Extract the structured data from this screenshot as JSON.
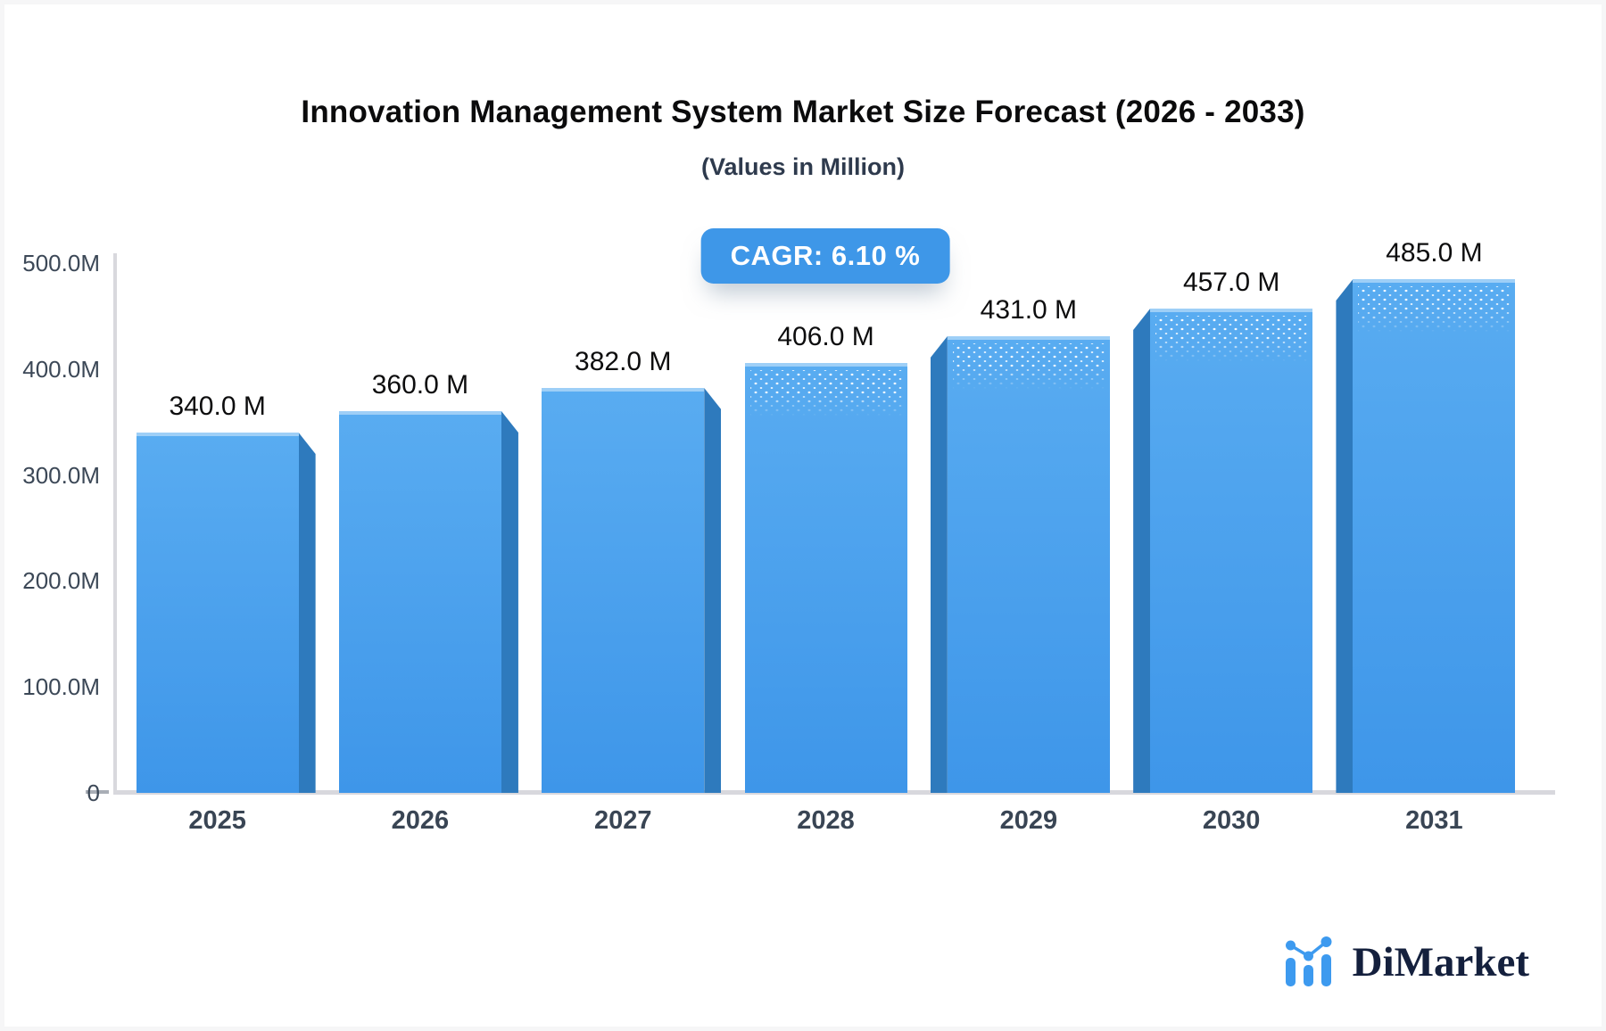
{
  "chart_data": {
    "type": "bar",
    "title": "Innovation Management System Market Size Forecast (2026 - 2033)",
    "subtitle": "(Values in Million)",
    "annotation": "CAGR: 6.10 %",
    "unit": "Million",
    "categories": [
      "2025",
      "2026",
      "2027",
      "2028",
      "2029",
      "2030",
      "2031"
    ],
    "values": [
      340,
      360,
      382,
      406,
      431,
      457,
      485
    ],
    "value_labels": [
      "340.0 M",
      "360.0 M",
      "382.0 M",
      "406.0 M",
      "431.0 M",
      "457.0 M",
      "485.0 M"
    ],
    "xlabel": "",
    "ylabel": "",
    "ylim": [
      0,
      500
    ],
    "yticks": [
      {
        "value": 500,
        "label": "500.0M"
      },
      {
        "value": 400,
        "label": "400.0M"
      },
      {
        "value": 300,
        "label": "300.0M"
      },
      {
        "value": 200,
        "label": "200.0M"
      },
      {
        "value": 100,
        "label": "100.0M"
      },
      {
        "value": 0,
        "label": "0"
      }
    ],
    "grid": false,
    "legend": "none",
    "colors": {
      "bar_top": "#59acf1",
      "bar_bottom": "#3e96e9",
      "bar_side_face": "#2e7abd",
      "badge_background": "#3e97e8",
      "badge_text": "#ffffff",
      "axis_line": "#d8d8dd",
      "zero_tick": "#a9aeb6",
      "axis_label_text": "#3c4857",
      "category_label_text": "#394554",
      "value_label_text": "#0d0d0e",
      "title_text": "#0b0b0c",
      "subtitle_text": "#2e3a4d",
      "logo_blue": "#3d9aef",
      "logo_navy": "#14203d"
    }
  },
  "footer": {
    "brand": "DiMarket"
  }
}
